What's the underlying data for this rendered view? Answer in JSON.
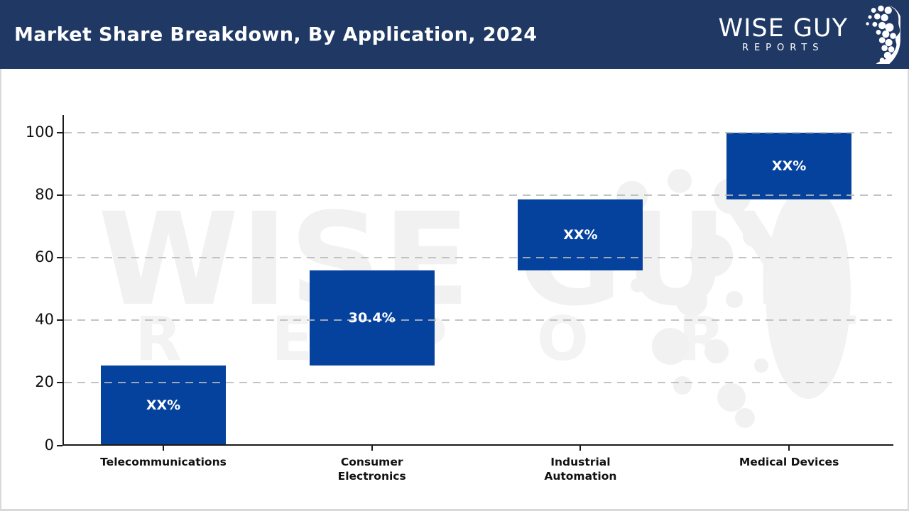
{
  "header": {
    "title": "Market Share Breakdown, By Application, 2024",
    "logo": {
      "primary": "WISE GUY",
      "secondary": "REPORTS"
    }
  },
  "watermark": {
    "primary": "WISE GUY",
    "secondary": "R E P O R T S"
  },
  "chart_data": {
    "type": "bar",
    "variant": "floating-waterfall",
    "title": "Market Share Breakdown, By Application, 2024",
    "categories": [
      "Telecommunications",
      "Consumer Electronics",
      "Industrial Automation",
      "Medical Devices"
    ],
    "bars": [
      {
        "category_lines": [
          "Telecommunications"
        ],
        "start": 0,
        "end": 25.5,
        "label": "XX%"
      },
      {
        "category_lines": [
          "Consumer",
          "Electronics"
        ],
        "start": 25.5,
        "end": 55.9,
        "label": "30.4%"
      },
      {
        "category_lines": [
          "Industrial",
          "Automation"
        ],
        "start": 55.9,
        "end": 78.6,
        "label": "XX%"
      },
      {
        "category_lines": [
          "Medical Devices"
        ],
        "start": 78.6,
        "end": 100,
        "label": "XX%"
      }
    ],
    "y_ticks": [
      0,
      20,
      40,
      60,
      80,
      100
    ],
    "ylim": [
      0,
      105
    ],
    "xlabel": "",
    "ylabel": "",
    "grid": "horizontal-dashed",
    "legend": "none",
    "bar_color": "#05429d",
    "bar_label_color": "#ffffff",
    "grid_color": "#d9d9d9",
    "axis_color": "#1a1a1a",
    "header_color": "#1f3864"
  }
}
